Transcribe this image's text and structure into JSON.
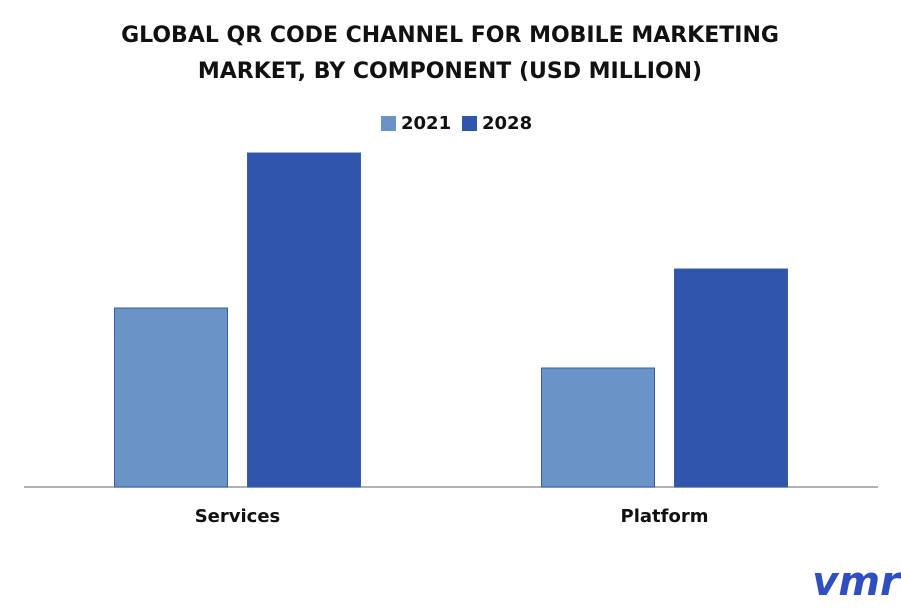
{
  "chart_data": {
    "type": "bar",
    "title": [
      "GLOBAL QR CODE CHANNEL FOR MOBILE MARKETING",
      "MARKET, BY COMPONENT (USD MILLION)"
    ],
    "categories": [
      "Services",
      "Platform"
    ],
    "series": [
      {
        "name": "2021",
        "color": "#6a93c8",
        "values": [
          179,
          119
        ]
      },
      {
        "name": "2028",
        "color": "#2f55ad",
        "values": [
          334,
          218
        ]
      }
    ],
    "legend": "top",
    "logo": "vmr"
  }
}
